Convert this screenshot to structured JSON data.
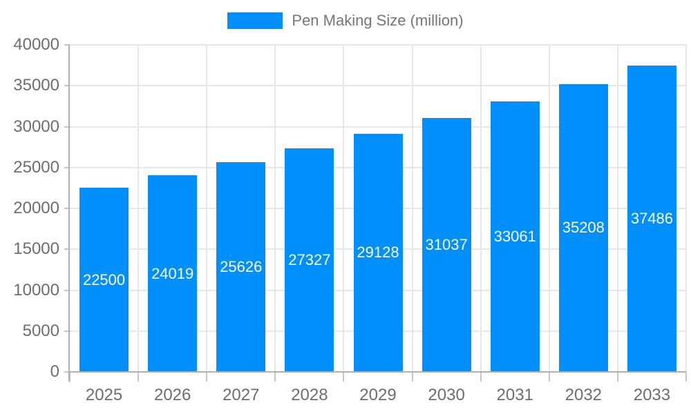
{
  "chart_data": {
    "type": "bar",
    "title": "Pen Making Size (million)",
    "legend": {
      "label": "Pen Making Size (million)",
      "position": "top"
    },
    "categories": [
      "2025",
      "2026",
      "2027",
      "2028",
      "2029",
      "2030",
      "2031",
      "2032",
      "2033"
    ],
    "series": [
      {
        "name": "Pen Making Size (million)",
        "values": [
          22500,
          24019,
          25626,
          27327,
          29128,
          31037,
          33061,
          35208,
          37486
        ]
      }
    ],
    "value_labels": [
      "22500",
      "24019",
      "25626",
      "27327",
      "29128",
      "31037",
      "33061",
      "35208",
      "37486"
    ],
    "xlabel": "",
    "ylabel": "",
    "ylim": [
      0,
      40000
    ],
    "ytick_step": 5000,
    "ytick_labels": [
      "0",
      "5000",
      "10000",
      "15000",
      "20000",
      "25000",
      "30000",
      "35000",
      "40000"
    ],
    "grid": true,
    "colors": {
      "bar": "#008FFB",
      "grid": "#e6e6e6",
      "axis": "#b0b0b0",
      "tick": "#c6c6c6",
      "axis_text": "#6d6d6d",
      "legend_text": "#757575",
      "value_text": "#ffffff"
    }
  }
}
